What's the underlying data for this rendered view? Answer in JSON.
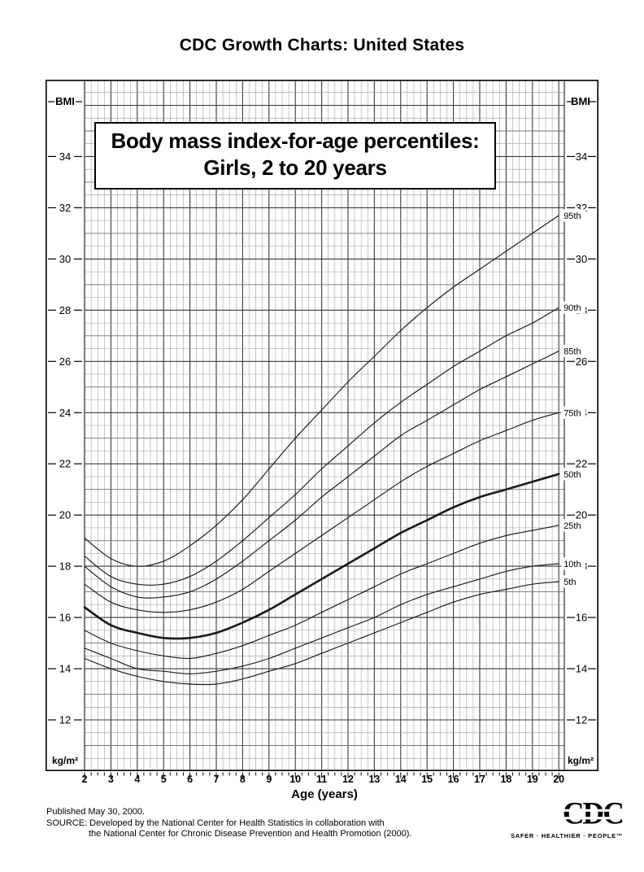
{
  "header": {
    "title": "CDC Growth Charts: United States"
  },
  "chart": {
    "title_line1": "Body mass index-for-age percentiles:",
    "title_line2": "Girls, 2 to 20 years"
  },
  "chart_data": {
    "type": "line",
    "title": "Body mass index-for-age percentiles: Girls, 2 to 20 years",
    "xlabel": "Age (years)",
    "ylabel": "BMI (kg/m²)",
    "y_unit_top": "BMI",
    "y_unit_bottom": "kg/m²",
    "x": [
      2,
      3,
      4,
      5,
      6,
      7,
      8,
      9,
      10,
      11,
      12,
      13,
      14,
      15,
      16,
      17,
      18,
      19,
      20
    ],
    "xlim": [
      2,
      20
    ],
    "ylim": [
      10,
      37
    ],
    "x_ticks": [
      2,
      3,
      4,
      5,
      6,
      7,
      8,
      9,
      10,
      11,
      12,
      13,
      14,
      15,
      16,
      17,
      18,
      19,
      20
    ],
    "y_ticks": [
      12,
      14,
      16,
      18,
      20,
      22,
      24,
      26,
      28,
      30,
      32,
      34
    ],
    "grid": "on",
    "legend_position": "right-of-curves",
    "series": [
      {
        "name": "95th",
        "emphasis": false,
        "values": [
          19.1,
          18.3,
          18.0,
          18.2,
          18.8,
          19.6,
          20.6,
          21.8,
          23.0,
          24.1,
          25.2,
          26.2,
          27.2,
          28.1,
          28.9,
          29.6,
          30.3,
          31.0,
          31.7
        ]
      },
      {
        "name": "90th",
        "emphasis": false,
        "values": [
          18.4,
          17.6,
          17.3,
          17.3,
          17.6,
          18.2,
          19.0,
          19.9,
          20.8,
          21.8,
          22.7,
          23.6,
          24.4,
          25.1,
          25.8,
          26.4,
          27.0,
          27.5,
          28.1
        ]
      },
      {
        "name": "85th",
        "emphasis": false,
        "values": [
          18.0,
          17.2,
          16.8,
          16.8,
          17.0,
          17.5,
          18.2,
          19.0,
          19.8,
          20.7,
          21.5,
          22.3,
          23.1,
          23.7,
          24.3,
          24.9,
          25.4,
          25.9,
          26.4
        ]
      },
      {
        "name": "75th",
        "emphasis": false,
        "values": [
          17.3,
          16.6,
          16.3,
          16.2,
          16.3,
          16.6,
          17.1,
          17.8,
          18.5,
          19.2,
          19.9,
          20.6,
          21.3,
          21.9,
          22.4,
          22.9,
          23.3,
          23.7,
          24.0
        ]
      },
      {
        "name": "50th",
        "emphasis": true,
        "values": [
          16.4,
          15.7,
          15.4,
          15.2,
          15.2,
          15.4,
          15.8,
          16.3,
          16.9,
          17.5,
          18.1,
          18.7,
          19.3,
          19.8,
          20.3,
          20.7,
          21.0,
          21.3,
          21.6
        ]
      },
      {
        "name": "25th",
        "emphasis": false,
        "values": [
          15.5,
          15.0,
          14.7,
          14.5,
          14.4,
          14.6,
          14.9,
          15.3,
          15.7,
          16.2,
          16.7,
          17.2,
          17.7,
          18.1,
          18.5,
          18.9,
          19.2,
          19.4,
          19.6
        ]
      },
      {
        "name": "10th",
        "emphasis": false,
        "values": [
          14.8,
          14.4,
          14.0,
          13.9,
          13.8,
          13.9,
          14.1,
          14.4,
          14.8,
          15.2,
          15.6,
          16.0,
          16.5,
          16.9,
          17.2,
          17.5,
          17.8,
          18.0,
          18.1
        ]
      },
      {
        "name": "5th",
        "emphasis": false,
        "values": [
          14.4,
          14.0,
          13.7,
          13.5,
          13.4,
          13.4,
          13.6,
          13.9,
          14.2,
          14.6,
          15.0,
          15.4,
          15.8,
          16.2,
          16.6,
          16.9,
          17.1,
          17.3,
          17.4
        ]
      }
    ]
  },
  "footer": {
    "published": "Published May 30, 2000.",
    "source_line1": "SOURCE: Developed by the National Center for Health Statistics in collaboration with",
    "source_line2": "the National Center for Chronic Disease Prevention and Health Promotion (2000)."
  },
  "logo": {
    "text": "CDC",
    "tagline": "SAFER · HEALTHIER · PEOPLE™"
  }
}
